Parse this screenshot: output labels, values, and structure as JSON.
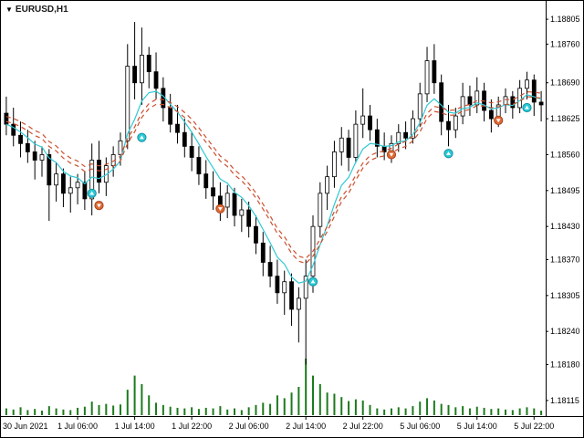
{
  "window": {
    "symbol_label": "EURUSD,H1"
  },
  "chart_data": {
    "type": "candlestick",
    "symbol": "EURUSD",
    "timeframe": "H1",
    "title": "EURUSD,H1",
    "ylim": [
      1.18095,
      1.18825
    ],
    "grid": false,
    "price_axis": {
      "side": "right",
      "labels": [
        "1.18805",
        "1.18760",
        "1.18690",
        "1.18625",
        "1.18560",
        "1.18495",
        "1.18430",
        "1.18370",
        "1.18305",
        "1.18240",
        "1.18180",
        "1.18115"
      ]
    },
    "time_axis": {
      "ticks": [
        {
          "bar": 2,
          "label": "30 Jun 2021"
        },
        {
          "bar": 10,
          "label": "1 Jul 06:00"
        },
        {
          "bar": 18,
          "label": "1 Jul 14:00"
        },
        {
          "bar": 26,
          "label": "1 Jul 22:00"
        },
        {
          "bar": 34,
          "label": "2 Jul 06:00"
        },
        {
          "bar": 42,
          "label": "2 Jul 14:00"
        },
        {
          "bar": 50,
          "label": "2 Jul 22:00"
        },
        {
          "bar": 58,
          "label": "5 Jul 06:00"
        },
        {
          "bar": 66,
          "label": "5 Jul 14:00"
        },
        {
          "bar": 74,
          "label": "5 Jul 22:00"
        }
      ]
    },
    "candles": {
      "columns": [
        "open",
        "high",
        "low",
        "close",
        "volume"
      ],
      "rows": [
        [
          1.18635,
          1.18665,
          1.18595,
          1.18615,
          12
        ],
        [
          1.18615,
          1.18645,
          1.18575,
          1.18595,
          10
        ],
        [
          1.18595,
          1.1862,
          1.18555,
          1.1858,
          14
        ],
        [
          1.1858,
          1.18605,
          1.18545,
          1.18565,
          9
        ],
        [
          1.18565,
          1.18585,
          1.18515,
          1.1855,
          11
        ],
        [
          1.1855,
          1.18575,
          1.1852,
          1.1856,
          8
        ],
        [
          1.1856,
          1.1857,
          1.1844,
          1.18505,
          16
        ],
        [
          1.18505,
          1.18545,
          1.18475,
          1.18525,
          12
        ],
        [
          1.18525,
          1.18535,
          1.18465,
          1.1849,
          10
        ],
        [
          1.1849,
          1.1852,
          1.18455,
          1.185,
          9
        ],
        [
          1.185,
          1.18525,
          1.1847,
          1.1851,
          13
        ],
        [
          1.1851,
          1.1853,
          1.1846,
          1.1848,
          15
        ],
        [
          1.1848,
          1.1858,
          1.1845,
          1.1855,
          24
        ],
        [
          1.1855,
          1.18585,
          1.1849,
          1.1851,
          18
        ],
        [
          1.1851,
          1.18555,
          1.18485,
          1.1854,
          20
        ],
        [
          1.1854,
          1.18575,
          1.1852,
          1.1856,
          17
        ],
        [
          1.1856,
          1.186,
          1.1854,
          1.18585,
          19
        ],
        [
          1.18585,
          1.1876,
          1.1857,
          1.1872,
          45
        ],
        [
          1.1872,
          1.188,
          1.1866,
          1.1869,
          70
        ],
        [
          1.1869,
          1.1879,
          1.1865,
          1.1874,
          55
        ],
        [
          1.1874,
          1.18755,
          1.1868,
          1.1871,
          35
        ],
        [
          1.1871,
          1.18745,
          1.1866,
          1.1868,
          22
        ],
        [
          1.1868,
          1.187,
          1.1862,
          1.18645,
          18
        ],
        [
          1.18645,
          1.1867,
          1.186,
          1.18615,
          15
        ],
        [
          1.18615,
          1.1865,
          1.1858,
          1.186,
          13
        ],
        [
          1.186,
          1.18625,
          1.18555,
          1.18575,
          12
        ],
        [
          1.18575,
          1.186,
          1.1853,
          1.18555,
          14
        ],
        [
          1.18555,
          1.18575,
          1.18505,
          1.18525,
          11
        ],
        [
          1.18525,
          1.1855,
          1.1848,
          1.185,
          13
        ],
        [
          1.185,
          1.1853,
          1.1846,
          1.18485,
          12
        ],
        [
          1.18485,
          1.1851,
          1.1844,
          1.18465,
          16
        ],
        [
          1.18465,
          1.18505,
          1.18445,
          1.1849,
          10
        ],
        [
          1.1849,
          1.185,
          1.1843,
          1.1845,
          12
        ],
        [
          1.1845,
          1.1848,
          1.1842,
          1.1846,
          9
        ],
        [
          1.1846,
          1.18475,
          1.1841,
          1.1843,
          14
        ],
        [
          1.1843,
          1.1845,
          1.1838,
          1.184,
          18
        ],
        [
          1.184,
          1.1842,
          1.1834,
          1.18365,
          22
        ],
        [
          1.18365,
          1.18395,
          1.1832,
          1.1834,
          20
        ],
        [
          1.1834,
          1.1837,
          1.1829,
          1.1831,
          35
        ],
        [
          1.1831,
          1.1835,
          1.1827,
          1.1833,
          30
        ],
        [
          1.1833,
          1.18345,
          1.1825,
          1.1828,
          40
        ],
        [
          1.1828,
          1.1832,
          1.1822,
          1.183,
          50
        ],
        [
          1.183,
          1.1837,
          1.1818,
          1.1834,
          100
        ],
        [
          1.1834,
          1.1845,
          1.1831,
          1.1843,
          70
        ],
        [
          1.1843,
          1.1851,
          1.1841,
          1.1849,
          55
        ],
        [
          1.1849,
          1.1854,
          1.1846,
          1.1852,
          40
        ],
        [
          1.1852,
          1.18585,
          1.185,
          1.18565,
          38
        ],
        [
          1.18565,
          1.1861,
          1.1854,
          1.1859,
          32
        ],
        [
          1.1859,
          1.18605,
          1.1853,
          1.18555,
          25
        ],
        [
          1.18555,
          1.1864,
          1.18545,
          1.18615,
          28
        ],
        [
          1.18615,
          1.1868,
          1.1859,
          1.1863,
          26
        ],
        [
          1.1863,
          1.1865,
          1.18585,
          1.18605,
          18
        ],
        [
          1.18605,
          1.18625,
          1.18555,
          1.18575,
          12
        ],
        [
          1.18575,
          1.186,
          1.1855,
          1.18565,
          10
        ],
        [
          1.18565,
          1.18595,
          1.18545,
          1.1858,
          12
        ],
        [
          1.1858,
          1.18615,
          1.18565,
          1.186,
          14
        ],
        [
          1.186,
          1.1862,
          1.1857,
          1.1859,
          12
        ],
        [
          1.1859,
          1.1864,
          1.1858,
          1.18625,
          16
        ],
        [
          1.18625,
          1.1869,
          1.1861,
          1.1867,
          24
        ],
        [
          1.1867,
          1.18755,
          1.18655,
          1.1873,
          30
        ],
        [
          1.1873,
          1.1876,
          1.1867,
          1.1869,
          26
        ],
        [
          1.1869,
          1.18705,
          1.18595,
          1.1862,
          20
        ],
        [
          1.1862,
          1.1865,
          1.18575,
          1.18605,
          18
        ],
        [
          1.18605,
          1.18645,
          1.1859,
          1.1863,
          14
        ],
        [
          1.1863,
          1.1869,
          1.18615,
          1.18665,
          16
        ],
        [
          1.18665,
          1.18685,
          1.1863,
          1.1865,
          12
        ],
        [
          1.1865,
          1.187,
          1.18635,
          1.18675,
          15
        ],
        [
          1.18675,
          1.1869,
          1.1862,
          1.1864,
          13
        ],
        [
          1.1864,
          1.1866,
          1.186,
          1.18625,
          11
        ],
        [
          1.18625,
          1.18665,
          1.1861,
          1.1865,
          12
        ],
        [
          1.1865,
          1.1868,
          1.18635,
          1.18665,
          10
        ],
        [
          1.18665,
          1.18675,
          1.18625,
          1.18645,
          9
        ],
        [
          1.18645,
          1.18695,
          1.18635,
          1.1868,
          12
        ],
        [
          1.1868,
          1.1871,
          1.1866,
          1.18695,
          14
        ],
        [
          1.18695,
          1.18705,
          1.1863,
          1.18655,
          12
        ],
        [
          1.18655,
          1.18675,
          1.1862,
          1.1865,
          8
        ]
      ]
    },
    "indicators": [
      {
        "name": "fast-ma",
        "type": "ema",
        "period": 6,
        "offset": 0.0,
        "color": "#2fc9d4",
        "style": "solid"
      },
      {
        "name": "slow-ma-a",
        "type": "ema",
        "period": 10,
        "offset": 5e-05,
        "color": "#cc4f2e",
        "style": "dashed"
      },
      {
        "name": "slow-ma-b",
        "type": "ema",
        "period": 10,
        "offset": 0.00014,
        "color": "#cc4f2e",
        "style": "dashed"
      }
    ],
    "signals": [
      {
        "bar": 12,
        "price": 1.1849,
        "type": "buy"
      },
      {
        "bar": 13,
        "price": 1.18468,
        "type": "sell"
      },
      {
        "bar": 19,
        "price": 1.18591,
        "type": "buy"
      },
      {
        "bar": 30,
        "price": 1.18462,
        "type": "sell"
      },
      {
        "bar": 43,
        "price": 1.1833,
        "type": "buy"
      },
      {
        "bar": 54,
        "price": 1.1856,
        "type": "sell"
      },
      {
        "bar": 62,
        "price": 1.18562,
        "type": "buy"
      },
      {
        "bar": 69,
        "price": 1.18622,
        "type": "sell"
      },
      {
        "bar": 73,
        "price": 1.18645,
        "type": "buy"
      }
    ],
    "colors": {
      "background": "#ffffff",
      "axis": "#000000",
      "wick": "#000000",
      "bull": "#ffffff",
      "bear": "#000000",
      "volume": "#1c7a1c",
      "buy": "#2bc9d6",
      "buy_border": "#1691a1",
      "sell": "#dd6a35",
      "sell_border": "#a8441f"
    }
  }
}
